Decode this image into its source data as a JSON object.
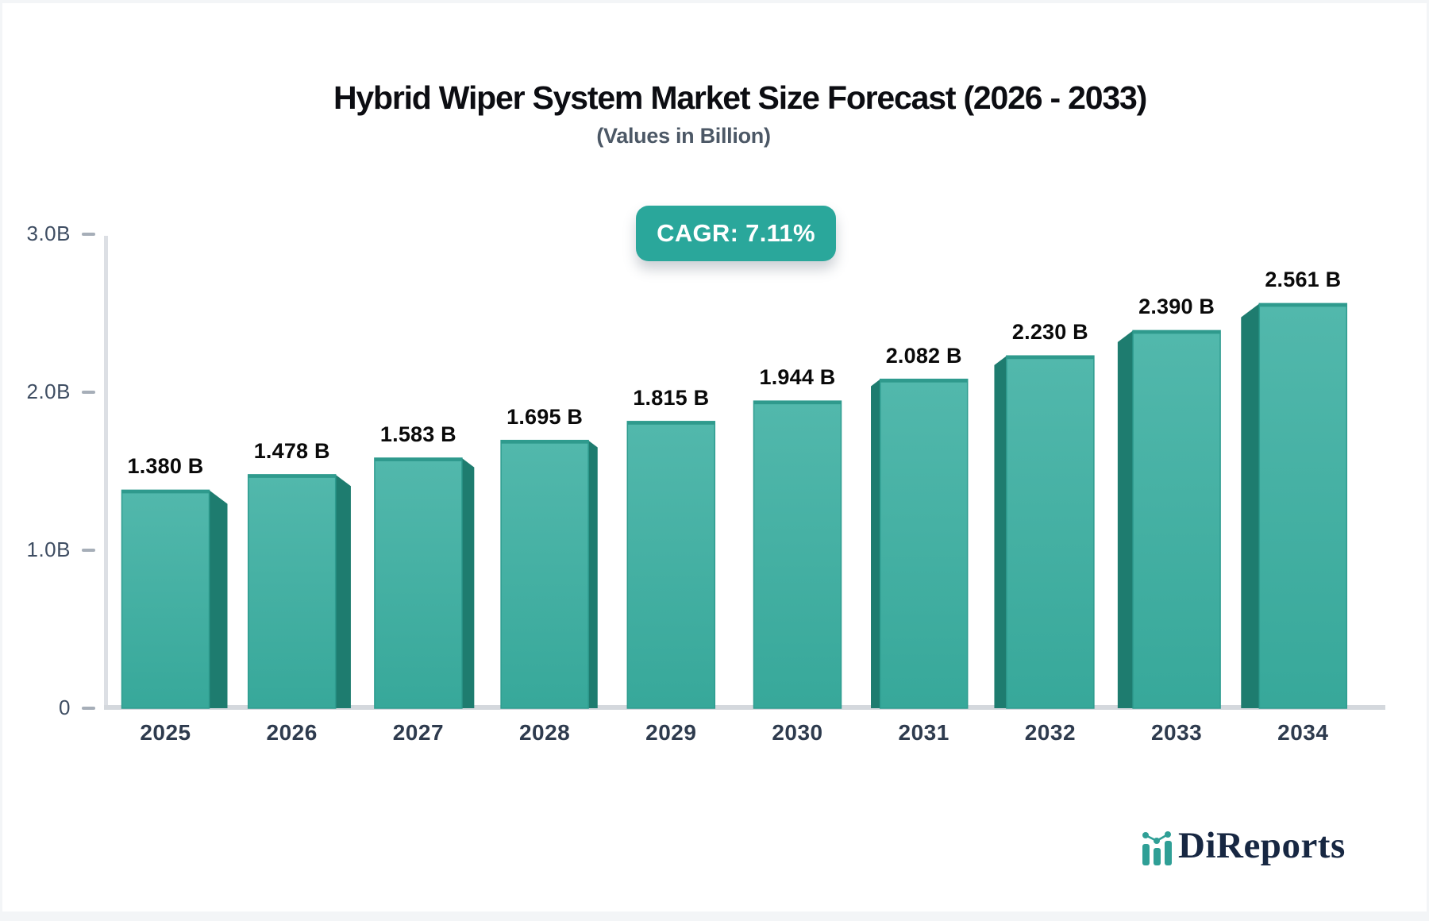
{
  "header": {
    "title": "Hybrid Wiper System Market Size Forecast (2026 - 2033)",
    "subtitle": "(Values in Billion)"
  },
  "badge": {
    "label": "CAGR: 7.11%",
    "color": "#2AA79B"
  },
  "chart_data": {
    "type": "bar",
    "title": "Hybrid Wiper System Market Size Forecast (2026 - 2033)",
    "subtitle": "(Values in Billion)",
    "unit": "Billion",
    "categories": [
      "2025",
      "2026",
      "2027",
      "2028",
      "2029",
      "2030",
      "2031",
      "2032",
      "2033",
      "2034"
    ],
    "values": [
      1.38,
      1.478,
      1.583,
      1.695,
      1.815,
      1.944,
      2.082,
      2.23,
      2.39,
      2.561
    ],
    "value_labels": [
      "1.380 B",
      "1.478 B",
      "1.583 B",
      "1.695 B",
      "1.815 B",
      "1.944 B",
      "2.082 B",
      "2.230 B",
      "2.390 B",
      "2.561 B"
    ],
    "xlabel": "",
    "ylabel": "",
    "ylim": [
      0,
      3.0
    ],
    "yticks": [
      {
        "value": 0,
        "label": "0"
      },
      {
        "value": 1.0,
        "label": "1.0B"
      },
      {
        "value": 2.0,
        "label": "2.0B"
      },
      {
        "value": 3.0,
        "label": "3.0B"
      }
    ],
    "grid": false,
    "legend": false,
    "bar_style": "3d-perspective",
    "colors": {
      "face_top": "#52B8AC",
      "face_bottom": "#37A89A",
      "face_edge": "#2E9C8F",
      "cap": "#2F9A8D",
      "side": "#1E7C6F",
      "axis_line": "#DCDFE4",
      "baseline": "#D4D8DD",
      "tick": "#A6AEB8",
      "ytick_text": "#3E4D62",
      "xtick_text": "#2E3B4E",
      "value_text": "#0A0A0A"
    }
  },
  "branding": {
    "name": "DiReports",
    "icon": "mini-bar-line-chart-icon",
    "teal": "#2F9F96",
    "navy": "#172742"
  }
}
